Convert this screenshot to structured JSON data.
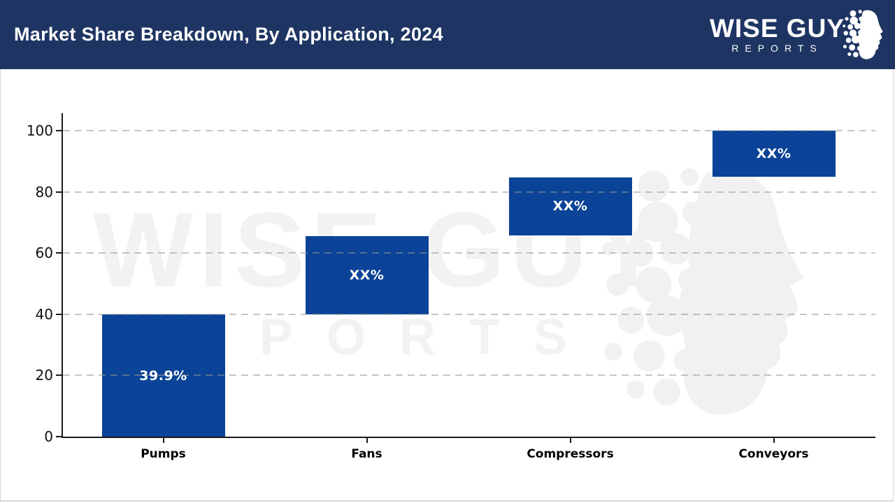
{
  "header": {
    "title": "Market Share Breakdown, By Application, 2024",
    "logo": {
      "line1": "WISE GUY",
      "line2": "REPORTS"
    }
  },
  "watermark": {
    "line1": "WISE GUY",
    "line2": "REPORTS"
  },
  "colors": {
    "header_bg": "#1e3563",
    "bar": "#0a4397",
    "axis": "#1a1a1a",
    "gridline": "#c9c9c9",
    "bar_label_text": "#ffffff",
    "watermark": "#f2f2f3"
  },
  "chart_data": {
    "type": "bar",
    "subtype": "waterfall",
    "title": "Market Share Breakdown, By Application, 2024",
    "categories": [
      "Pumps",
      "Fans",
      "Compressors",
      "Conveyors"
    ],
    "bars": [
      {
        "category": "Pumps",
        "base": 0,
        "top": 39.9,
        "label": "39.9%"
      },
      {
        "category": "Fans",
        "base": 40.0,
        "top": 65.5,
        "label": "XX%"
      },
      {
        "category": "Compressors",
        "base": 65.8,
        "top": 84.8,
        "label": "XX%"
      },
      {
        "category": "Conveyors",
        "base": 85.0,
        "top": 100,
        "label": "XX%"
      }
    ],
    "xlabel": "",
    "ylabel": "",
    "y_ticks": [
      0,
      20,
      40,
      60,
      80,
      100
    ],
    "ylim": [
      0,
      105
    ],
    "grid": true,
    "grid_style": "dashed",
    "legend": "none",
    "bar_color": "#0a4397"
  }
}
